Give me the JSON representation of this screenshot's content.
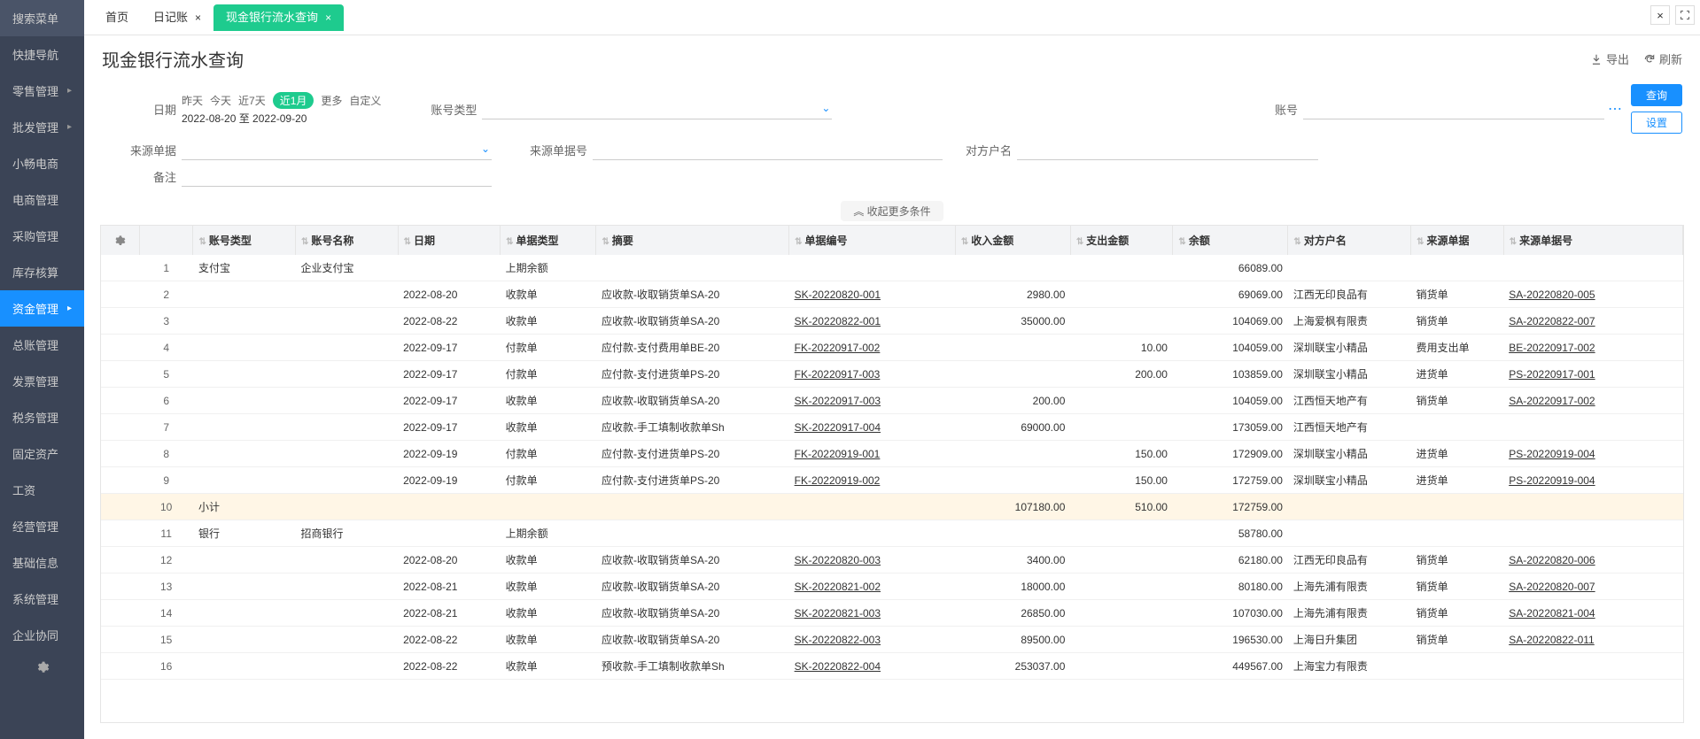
{
  "sidebar": {
    "items": [
      {
        "label": "搜索菜单",
        "active": false,
        "hasArrow": false
      },
      {
        "label": "快捷导航",
        "active": false,
        "hasArrow": false
      },
      {
        "label": "零售管理",
        "active": false,
        "hasArrow": true
      },
      {
        "label": "批发管理",
        "active": false,
        "hasArrow": true
      },
      {
        "label": "小畅电商",
        "active": false,
        "hasArrow": false
      },
      {
        "label": "电商管理",
        "active": false,
        "hasArrow": false
      },
      {
        "label": "采购管理",
        "active": false,
        "hasArrow": false
      },
      {
        "label": "库存核算",
        "active": false,
        "hasArrow": false
      },
      {
        "label": "资金管理",
        "active": true,
        "hasArrow": true
      },
      {
        "label": "总账管理",
        "active": false,
        "hasArrow": false
      },
      {
        "label": "发票管理",
        "active": false,
        "hasArrow": false
      },
      {
        "label": "税务管理",
        "active": false,
        "hasArrow": false
      },
      {
        "label": "固定资产",
        "active": false,
        "hasArrow": false
      },
      {
        "label": "工资",
        "active": false,
        "hasArrow": false
      },
      {
        "label": "经营管理",
        "active": false,
        "hasArrow": false
      },
      {
        "label": "基础信息",
        "active": false,
        "hasArrow": false
      },
      {
        "label": "系统管理",
        "active": false,
        "hasArrow": false
      },
      {
        "label": "企业协同",
        "active": false,
        "hasArrow": false
      }
    ]
  },
  "tabs": [
    {
      "label": "首页",
      "active": false,
      "closable": false
    },
    {
      "label": "日记账",
      "active": false,
      "closable": true
    },
    {
      "label": "现金银行流水查询",
      "active": true,
      "closable": true
    }
  ],
  "page": {
    "title": "现金银行流水查询",
    "export_label": "导出",
    "refresh_label": "刷新"
  },
  "filters": {
    "date_label": "日期",
    "date_pills": [
      "昨天",
      "今天",
      "近7天",
      "近1月",
      "更多",
      "自定义"
    ],
    "date_active": "近1月",
    "date_range": "2022-08-20 至 2022-09-20",
    "acct_type_label": "账号类型",
    "acct_label": "账号",
    "src_bill_label": "来源单据",
    "src_billno_label": "来源单据号",
    "party_label": "对方户名",
    "remark_label": "备注",
    "query_btn": "查询",
    "settings_btn": "设置",
    "collapse_label": "收起更多条件"
  },
  "table": {
    "columns": [
      "账号类型",
      "账号名称",
      "日期",
      "单据类型",
      "摘要",
      "单据编号",
      "收入金额",
      "支出金额",
      "余额",
      "对方户名",
      "来源单据",
      "来源单据号"
    ],
    "rows": [
      {
        "idx": "1",
        "type": "支付宝",
        "name": "企业支付宝",
        "date": "",
        "billtype": "上期余额",
        "summary": "",
        "billno": "",
        "in": "",
        "out": "",
        "bal": "66089.00",
        "party": "",
        "src": "",
        "srcno": "",
        "subtotal": false
      },
      {
        "idx": "2",
        "type": "",
        "name": "",
        "date": "2022-08-20",
        "billtype": "收款单",
        "summary": "应收款-收取销货单SA-20",
        "billno": "SK-20220820-001",
        "in": "2980.00",
        "out": "",
        "bal": "69069.00",
        "party": "江西无印良品有",
        "src": "销货单",
        "srcno": "SA-20220820-005",
        "subtotal": false
      },
      {
        "idx": "3",
        "type": "",
        "name": "",
        "date": "2022-08-22",
        "billtype": "收款单",
        "summary": "应收款-收取销货单SA-20",
        "billno": "SK-20220822-001",
        "in": "35000.00",
        "out": "",
        "bal": "104069.00",
        "party": "上海爱枫有限责",
        "src": "销货单",
        "srcno": "SA-20220822-007",
        "subtotal": false
      },
      {
        "idx": "4",
        "type": "",
        "name": "",
        "date": "2022-09-17",
        "billtype": "付款单",
        "summary": "应付款-支付费用单BE-20",
        "billno": "FK-20220917-002",
        "in": "",
        "out": "10.00",
        "bal": "104059.00",
        "party": "深圳联宝小精品",
        "src": "费用支出单",
        "srcno": "BE-20220917-002",
        "subtotal": false
      },
      {
        "idx": "5",
        "type": "",
        "name": "",
        "date": "2022-09-17",
        "billtype": "付款单",
        "summary": "应付款-支付进货单PS-20",
        "billno": "FK-20220917-003",
        "in": "",
        "out": "200.00",
        "bal": "103859.00",
        "party": "深圳联宝小精品",
        "src": "进货单",
        "srcno": "PS-20220917-001",
        "subtotal": false
      },
      {
        "idx": "6",
        "type": "",
        "name": "",
        "date": "2022-09-17",
        "billtype": "收款单",
        "summary": "应收款-收取销货单SA-20",
        "billno": "SK-20220917-003",
        "in": "200.00",
        "out": "",
        "bal": "104059.00",
        "party": "江西恒天地产有",
        "src": "销货单",
        "srcno": "SA-20220917-002",
        "subtotal": false
      },
      {
        "idx": "7",
        "type": "",
        "name": "",
        "date": "2022-09-17",
        "billtype": "收款单",
        "summary": "应收款-手工填制收款单Sh",
        "billno": "SK-20220917-004",
        "in": "69000.00",
        "out": "",
        "bal": "173059.00",
        "party": "江西恒天地产有",
        "src": "",
        "srcno": "",
        "subtotal": false
      },
      {
        "idx": "8",
        "type": "",
        "name": "",
        "date": "2022-09-19",
        "billtype": "付款单",
        "summary": "应付款-支付进货单PS-20",
        "billno": "FK-20220919-001",
        "in": "",
        "out": "150.00",
        "bal": "172909.00",
        "party": "深圳联宝小精品",
        "src": "进货单",
        "srcno": "PS-20220919-004",
        "subtotal": false
      },
      {
        "idx": "9",
        "type": "",
        "name": "",
        "date": "2022-09-19",
        "billtype": "付款单",
        "summary": "应付款-支付进货单PS-20",
        "billno": "FK-20220919-002",
        "in": "",
        "out": "150.00",
        "bal": "172759.00",
        "party": "深圳联宝小精品",
        "src": "进货单",
        "srcno": "PS-20220919-004",
        "subtotal": false
      },
      {
        "idx": "10",
        "type": "小计",
        "name": "",
        "date": "",
        "billtype": "",
        "summary": "",
        "billno": "",
        "in": "107180.00",
        "out": "510.00",
        "bal": "172759.00",
        "party": "",
        "src": "",
        "srcno": "",
        "subtotal": true
      },
      {
        "idx": "11",
        "type": "银行",
        "name": "招商银行",
        "date": "",
        "billtype": "上期余额",
        "summary": "",
        "billno": "",
        "in": "",
        "out": "",
        "bal": "58780.00",
        "party": "",
        "src": "",
        "srcno": "",
        "subtotal": false
      },
      {
        "idx": "12",
        "type": "",
        "name": "",
        "date": "2022-08-20",
        "billtype": "收款单",
        "summary": "应收款-收取销货单SA-20",
        "billno": "SK-20220820-003",
        "in": "3400.00",
        "out": "",
        "bal": "62180.00",
        "party": "江西无印良品有",
        "src": "销货单",
        "srcno": "SA-20220820-006",
        "subtotal": false
      },
      {
        "idx": "13",
        "type": "",
        "name": "",
        "date": "2022-08-21",
        "billtype": "收款单",
        "summary": "应收款-收取销货单SA-20",
        "billno": "SK-20220821-002",
        "in": "18000.00",
        "out": "",
        "bal": "80180.00",
        "party": "上海先浦有限责",
        "src": "销货单",
        "srcno": "SA-20220820-007",
        "subtotal": false
      },
      {
        "idx": "14",
        "type": "",
        "name": "",
        "date": "2022-08-21",
        "billtype": "收款单",
        "summary": "应收款-收取销货单SA-20",
        "billno": "SK-20220821-003",
        "in": "26850.00",
        "out": "",
        "bal": "107030.00",
        "party": "上海先浦有限责",
        "src": "销货单",
        "srcno": "SA-20220821-004",
        "subtotal": false
      },
      {
        "idx": "15",
        "type": "",
        "name": "",
        "date": "2022-08-22",
        "billtype": "收款单",
        "summary": "应收款-收取销货单SA-20",
        "billno": "SK-20220822-003",
        "in": "89500.00",
        "out": "",
        "bal": "196530.00",
        "party": "上海日升集团",
        "src": "销货单",
        "srcno": "SA-20220822-011",
        "subtotal": false
      },
      {
        "idx": "16",
        "type": "",
        "name": "",
        "date": "2022-08-22",
        "billtype": "收款单",
        "summary": "预收款-手工填制收款单Sh",
        "billno": "SK-20220822-004",
        "in": "253037.00",
        "out": "",
        "bal": "449567.00",
        "party": "上海宝力有限责",
        "src": "",
        "srcno": "",
        "subtotal": false
      }
    ]
  }
}
